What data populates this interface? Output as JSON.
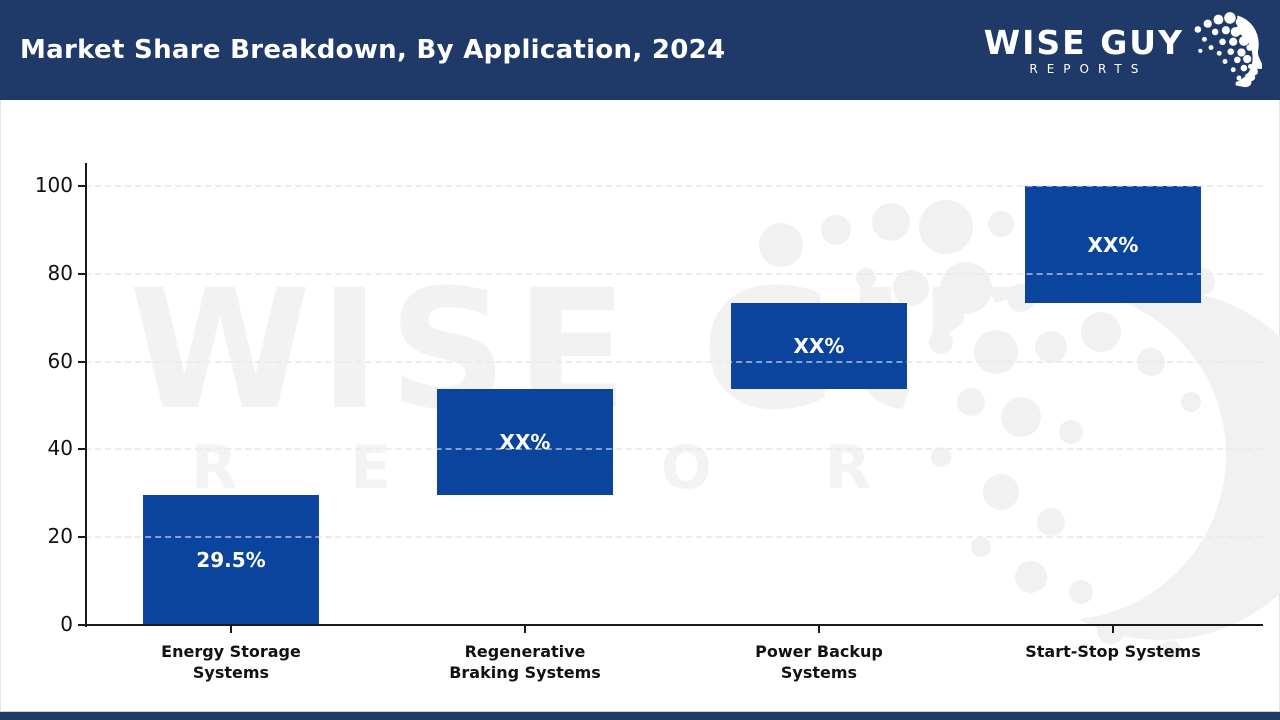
{
  "header": {
    "title": "Market Share Breakdown, By Application, 2024",
    "brand_line1": "WISE GUY",
    "brand_line2": "REPORTS"
  },
  "watermark": {
    "line1": "WISE GUY",
    "line2": "R E P O R T S"
  },
  "chart_data": {
    "type": "bar",
    "subtype": "waterfall",
    "title": "Market Share Breakdown, By Application, 2024",
    "categories": [
      "Energy Storage\nSystems",
      "Regenerative\nBraking Systems",
      "Power Backup\nSystems",
      "Start-Stop Systems"
    ],
    "segments": [
      {
        "category": "Energy Storage Systems",
        "start": 0,
        "end": 29.5,
        "label": "29.5%"
      },
      {
        "category": "Regenerative Braking Systems",
        "start": 29.5,
        "end": 53.8,
        "label": "XX%"
      },
      {
        "category": "Power Backup Systems",
        "start": 53.8,
        "end": 73.3,
        "label": "XX%"
      },
      {
        "category": "Start-Stop Systems",
        "start": 73.3,
        "end": 100,
        "label": "XX%"
      }
    ],
    "y_ticks": [
      0,
      20,
      40,
      60,
      80,
      100
    ],
    "ylim": [
      0,
      107
    ],
    "xlabel": "",
    "ylabel": "",
    "grid": true,
    "grid_style": "dashed",
    "legend": false
  },
  "colors": {
    "header_bg": "#1f3a68",
    "footer_bg": "#1f3a68",
    "bar": "#0b449c",
    "axis": "#1a1a1a",
    "gridline": "#d9d9d9",
    "watermark": "#f1f1f1"
  }
}
